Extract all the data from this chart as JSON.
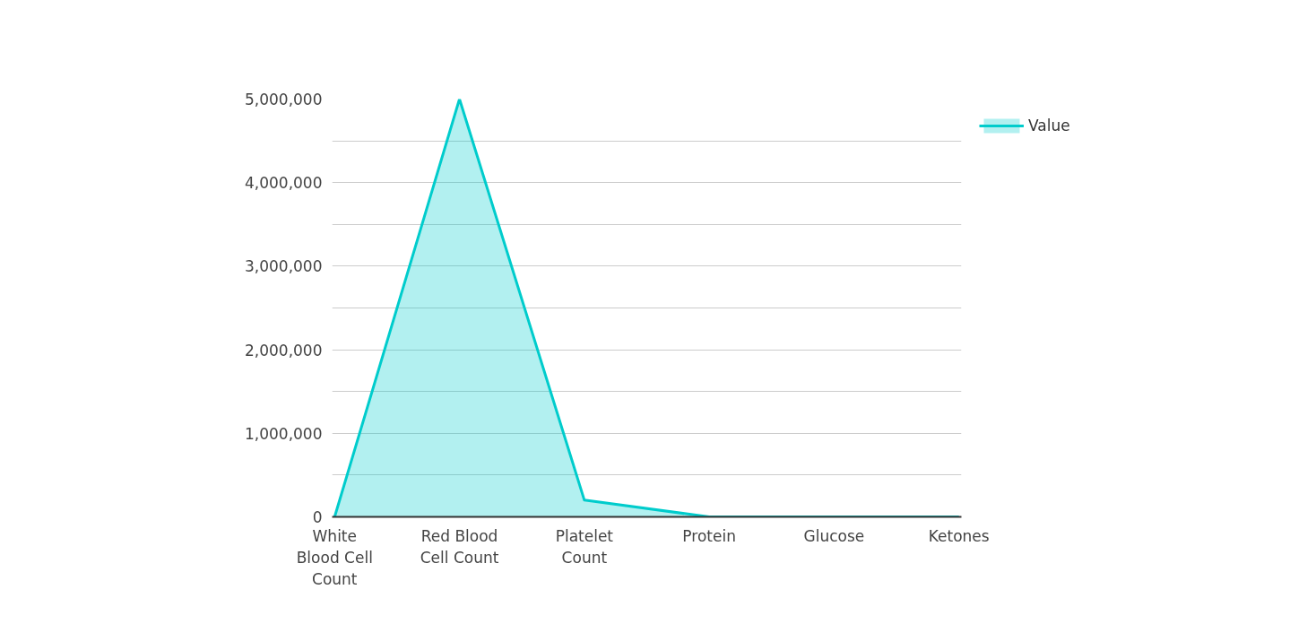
{
  "chart_data": {
    "type": "area",
    "categories": [
      "White Blood Cell Count",
      "Red Blood Cell Count",
      "Platelet Count",
      "Protein",
      "Glucose",
      "Ketones"
    ],
    "series": [
      {
        "name": "Value",
        "color": "#00cccc",
        "values": [
          0,
          5000000,
          200000,
          0,
          0,
          0
        ]
      }
    ],
    "ylim": [
      0,
      5000000
    ],
    "yticks": [
      0,
      {
        "value": 500000,
        "label": null
      },
      {
        "value": 1000000,
        "label": "1,000,000"
      },
      {
        "value": 1500000,
        "label": null
      },
      {
        "value": 2000000,
        "label": "2,000,000"
      },
      {
        "value": 2500000,
        "label": null
      },
      {
        "value": 3000000,
        "label": "3,000,000"
      },
      {
        "value": 3500000,
        "label": null
      },
      {
        "value": 4000000,
        "label": "4,000,000"
      },
      {
        "value": 4500000,
        "label": null
      },
      {
        "value": 5000000,
        "label": "5,000,000"
      }
    ],
    "grid": "y",
    "legend": "top right"
  }
}
